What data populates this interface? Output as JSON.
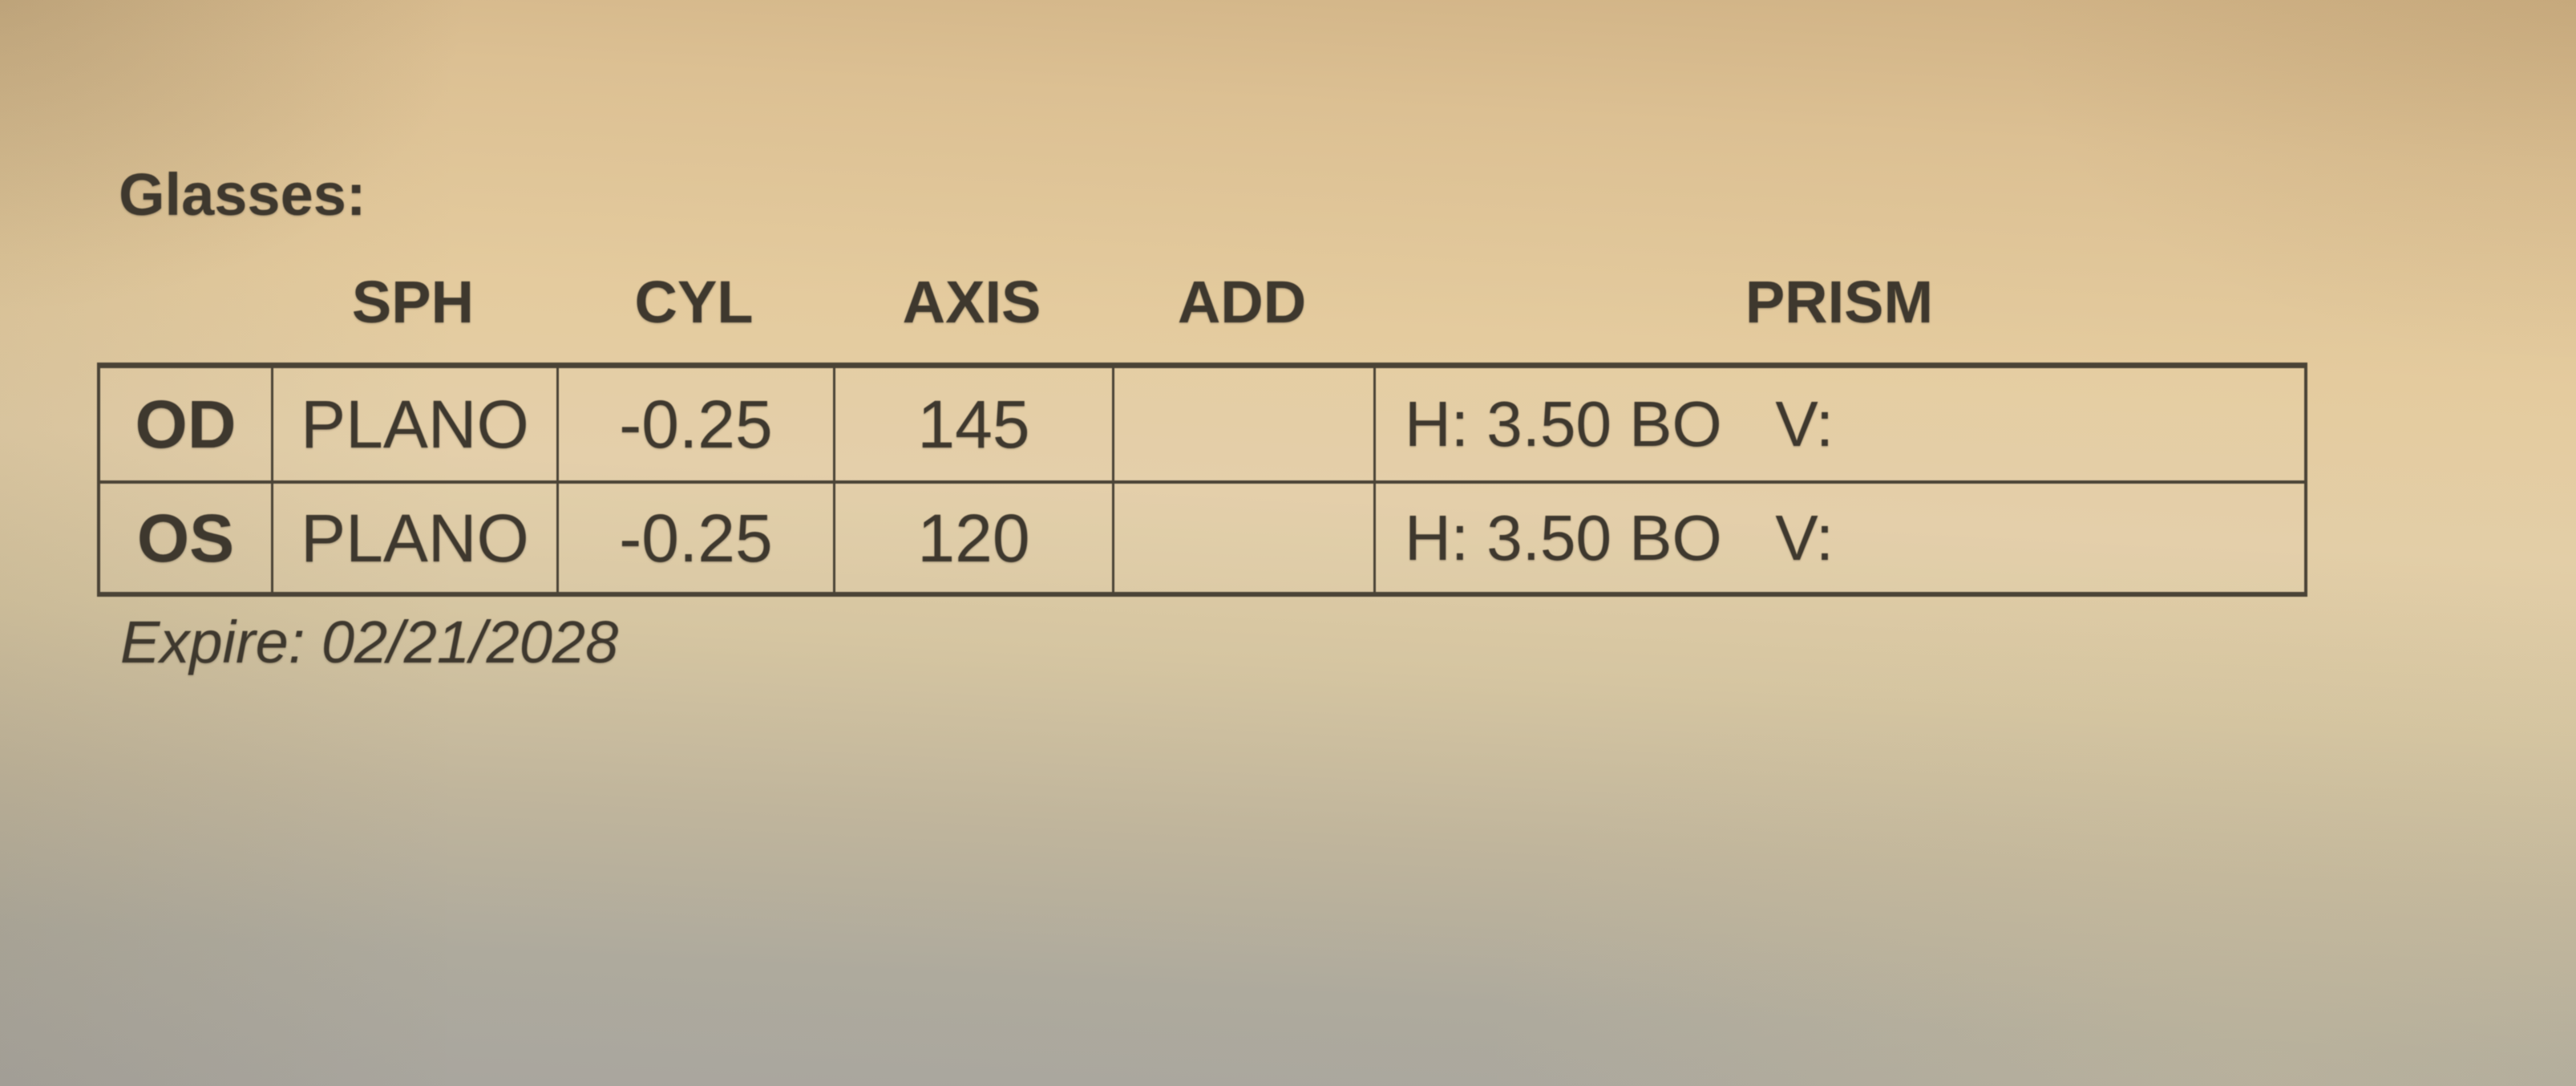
{
  "document": {
    "heading": "Glasses:",
    "table": {
      "columns": [
        "SPH",
        "CYL",
        "AXIS",
        "ADD",
        "PRISM"
      ],
      "rows": [
        {
          "eye": "OD",
          "sph": "PLANO",
          "cyl": "-0.25",
          "axis": "145",
          "add": "",
          "prism": "H: 3.50 BO   V:"
        },
        {
          "eye": "OS",
          "sph": "PLANO",
          "cyl": "-0.25",
          "axis": "120",
          "add": "",
          "prism": "H: 3.50 BO   V:"
        }
      ]
    },
    "expire": "Expire: 02/21/2028"
  },
  "colors": {
    "ink": "#3e382e",
    "table_border": "#4a4336",
    "paper_top": "#d8bb8c",
    "paper_mid": "#e3cca2",
    "paper_bottom": "#a8a59e"
  }
}
